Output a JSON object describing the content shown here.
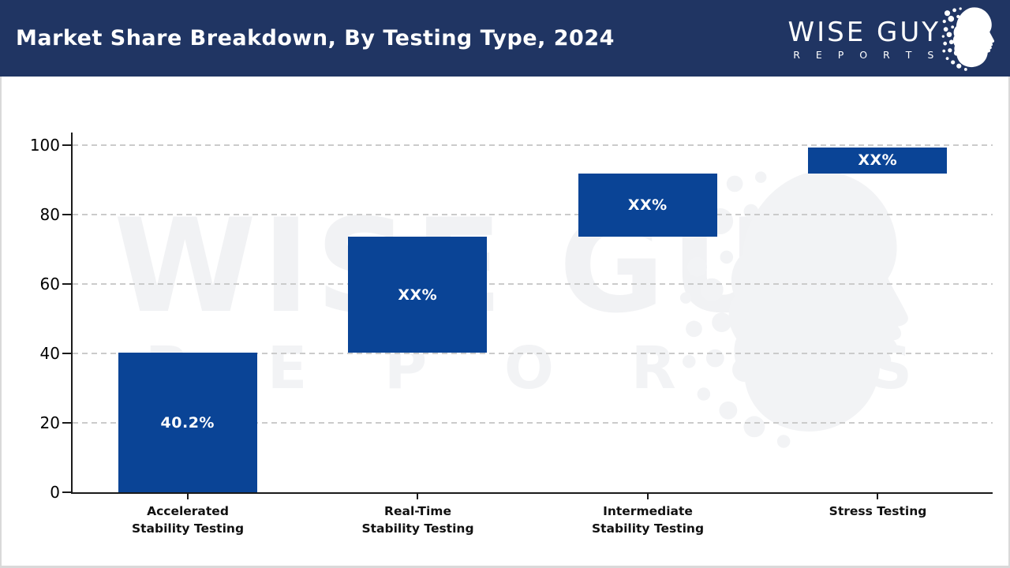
{
  "header": {
    "title": "Market Share Breakdown, By Testing Type, 2024",
    "logo": {
      "name": "WISE GUY",
      "subtitle": "R E P O R T S",
      "icon": "wiseguy-face-icon"
    }
  },
  "watermark": {
    "name": "WISE GUY",
    "subtitle": "R E P O R T S",
    "icon": "wiseguy-face-watermark-icon"
  },
  "chart_data": {
    "type": "bar",
    "subtype": "waterfall",
    "title": "Market Share Breakdown, By Testing Type, 2024",
    "categories": [
      "Accelerated Stability Testing",
      "Real-Time Stability Testing",
      "Intermediate Stability Testing",
      "Stress Testing"
    ],
    "category_labels": [
      "Accelerated\nStability Testing",
      "Real-Time\nStability Testing",
      "Intermediate\nStability Testing",
      "Stress Testing"
    ],
    "bars": [
      {
        "category": "Accelerated Stability Testing",
        "start": 0,
        "end": 40.2,
        "label": "40.2%"
      },
      {
        "category": "Real-Time Stability Testing",
        "start": 40.2,
        "end": 73.6,
        "label": "XX%"
      },
      {
        "category": "Intermediate Stability Testing",
        "start": 73.6,
        "end": 91.8,
        "label": "XX%"
      },
      {
        "category": "Stress Testing",
        "start": 91.8,
        "end": 99.4,
        "label": "XX%"
      }
    ],
    "xlabel": "",
    "ylabel": "",
    "ylim": [
      0,
      100
    ],
    "yticks": [
      0,
      20,
      40,
      60,
      80,
      100
    ],
    "grid": "horizontal-dashed",
    "legend": "none",
    "colors": {
      "bar": "#0a4496",
      "bar_label": "#ffffff",
      "header_bg": "#203563",
      "axis": "#1a1a1a",
      "gridline": "#cbcbcb",
      "watermark": "#f1f2f4"
    }
  }
}
